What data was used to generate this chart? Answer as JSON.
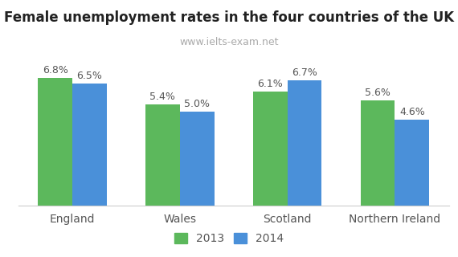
{
  "title": "Female unemployment rates in the four countries of the UK",
  "subtitle": "www.ielts-exam.net",
  "categories": [
    "England",
    "Wales",
    "Scotland",
    "Northern Ireland"
  ],
  "values_2013": [
    6.8,
    5.4,
    6.1,
    5.6
  ],
  "values_2014": [
    6.5,
    5.0,
    6.7,
    4.6
  ],
  "color_2013": "#5cb85c",
  "color_2014": "#4a90d9",
  "legend_labels": [
    "2013",
    "2014"
  ],
  "ylim": [
    0,
    8.5
  ],
  "bar_width": 0.32,
  "title_fontsize": 12,
  "subtitle_fontsize": 9,
  "tick_fontsize": 10,
  "value_fontsize": 9,
  "background_color": "#ffffff"
}
